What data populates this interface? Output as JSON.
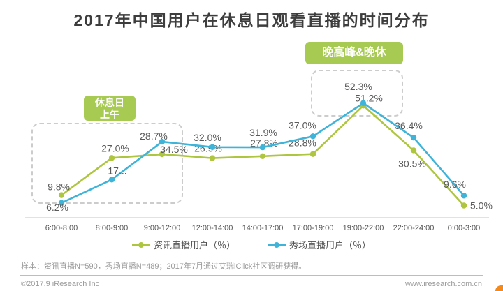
{
  "title": "2017年中国用户在休息日观看直播的时间分布",
  "annotations": {
    "morning": {
      "lines": [
        "休息日",
        "上午"
      ]
    },
    "evening": {
      "label": "晚高峰&晚休"
    },
    "badge_color": "#a7ca52"
  },
  "chart_data": {
    "type": "line",
    "title": "2017年中国用户在休息日观看直播的时间分布",
    "categories": [
      "6:00-8:00",
      "8:00-9:00",
      "9:00-12:00",
      "12:00-14:00",
      "14:00-17:00",
      "17:00-19:00",
      "19:00-22:00",
      "22:00-24:00",
      "0:00-3:00"
    ],
    "series": [
      {
        "name": "资讯直播用户（％）",
        "color": "#aec63f",
        "values": [
          9.8,
          27.0,
          28.7,
          26.9,
          27.8,
          28.8,
          51.2,
          30.5,
          5.0
        ],
        "labels": [
          "9.8%",
          "27.0%",
          "28.7%",
          "26.9%",
          "27.8%",
          "28.8%",
          "51.2%",
          "30.5%",
          "5.0%"
        ]
      },
      {
        "name": "秀场直播用户（％）",
        "color": "#3fb4d8",
        "values": [
          6.2,
          17.0,
          34.5,
          32.0,
          31.9,
          37.0,
          52.3,
          36.4,
          9.6
        ],
        "labels": [
          "6.2%",
          "17...",
          "34.5%",
          "32.0%",
          "31.9%",
          "37.0%",
          "52.3%",
          "36.4%",
          "9.6%"
        ]
      }
    ],
    "ylim": [
      0,
      60
    ],
    "grid": false,
    "legend_position": "bottom",
    "xlabel": "",
    "ylabel": ""
  },
  "footer": {
    "note": "样本：资讯直播N=590，秀场直播N=489；2017年7月通过艾瑞iClick社区调研获得。",
    "copyright": "©2017.9 iResearch Inc",
    "website": "www.iresearch.com.cn"
  }
}
